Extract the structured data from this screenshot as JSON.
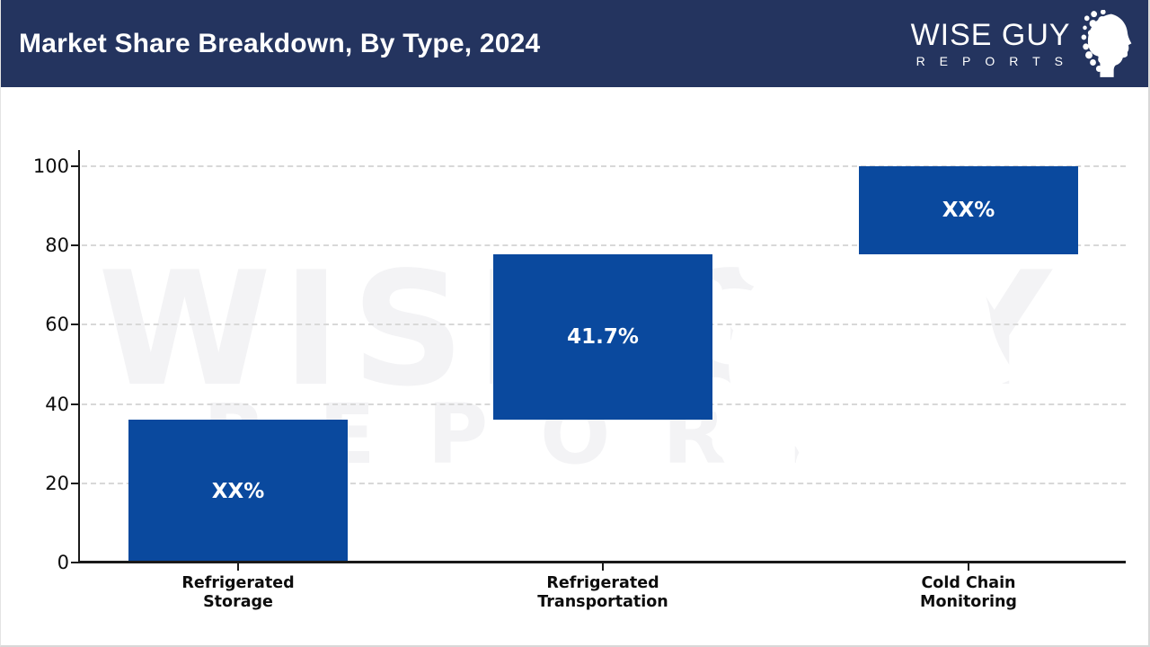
{
  "header": {
    "title": "Market Share Breakdown, By Type, 2024",
    "logo": {
      "line1": "WISE GUY",
      "line2": "REPORTS"
    }
  },
  "watermark": {
    "line1": "WISE GUY",
    "line2": "REPORTS"
  },
  "chart_data": {
    "type": "bar",
    "subtype": "waterfall",
    "title": "Market Share Breakdown, By Type, 2024",
    "categories": [
      "Refrigerated Storage",
      "Refrigerated Transportation",
      "Cold Chain Monitoring"
    ],
    "segments": [
      {
        "category": "Refrigerated Storage",
        "lines": [
          "Refrigerated",
          "Storage"
        ],
        "from": 0,
        "to": 36,
        "label": "XX%"
      },
      {
        "category": "Refrigerated Transportation",
        "lines": [
          "Refrigerated",
          "Transportation"
        ],
        "from": 36,
        "to": 77.7,
        "label": "41.7%"
      },
      {
        "category": "Cold Chain Monitoring",
        "lines": [
          "Cold Chain",
          "Monitoring"
        ],
        "from": 77.7,
        "to": 100,
        "label": "XX%"
      }
    ],
    "yticks": [
      0,
      20,
      40,
      60,
      80,
      100
    ],
    "ylim": [
      0,
      100
    ],
    "xlabel": "",
    "ylabel": "",
    "grid": "dashed-horizontal",
    "legend": "none",
    "bar_color": "#0a499e",
    "bar_label_color": "#ffffff"
  },
  "colors": {
    "header_navy": "#24345f",
    "bar_blue": "#0a499e",
    "axis": "#1a1a1a",
    "grid": "#d8d8d8",
    "text": "#0d0d0d",
    "watermark": "#f3f3f5"
  }
}
